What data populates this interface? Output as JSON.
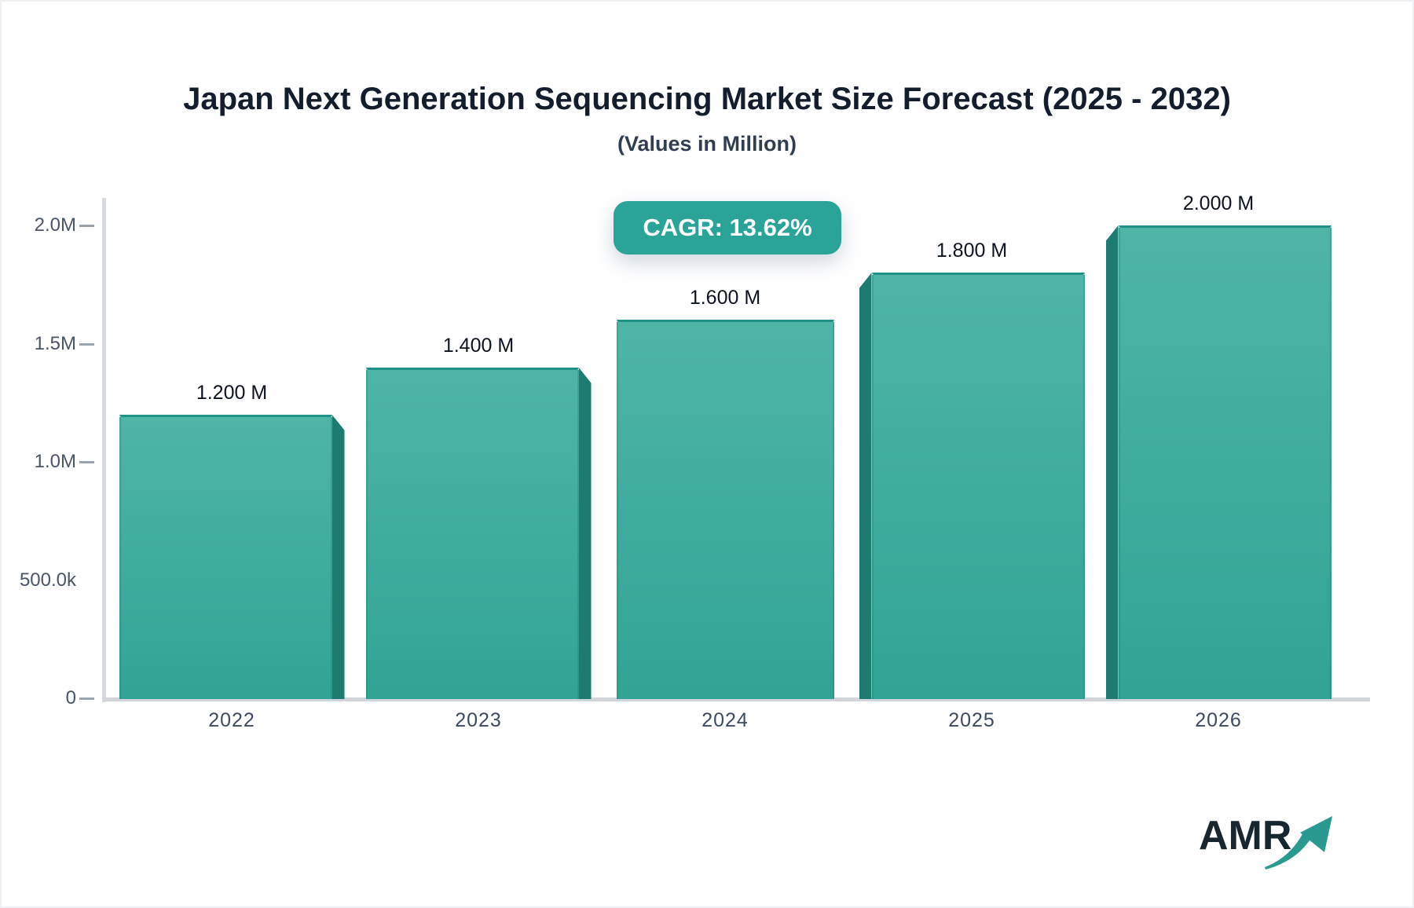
{
  "header": {
    "title": "Japan Next Generation Sequencing Market Size Forecast (2025 - 2032)",
    "subtitle": "(Values in Million)"
  },
  "cagr_badge": {
    "label": "CAGR: 13.62%",
    "bg_color": "#2aa399",
    "text_color": "#ffffff"
  },
  "chart_data": {
    "type": "bar",
    "title": "Japan Next Generation Sequencing Market Size Forecast (2025 - 2032)",
    "subtitle": "(Values in Million)",
    "categories": [
      "2022",
      "2023",
      "2024",
      "2025",
      "2026"
    ],
    "values": [
      1200000,
      1400000,
      1600000,
      1800000,
      2000000
    ],
    "value_labels": [
      "1.200 M",
      "1.400 M",
      "1.600 M",
      "1.800 M",
      "2.000 M"
    ],
    "xlabel": "",
    "ylabel": "",
    "ylim": [
      0,
      2000000
    ],
    "grid": false,
    "legend": false,
    "yticks": [
      {
        "value": 0,
        "label": "0",
        "dash": true
      },
      {
        "value": 500000,
        "label": "500.0k",
        "dash": false
      },
      {
        "value": 1000000,
        "label": "1.0M",
        "dash": true
      },
      {
        "value": 1500000,
        "label": "1.5M",
        "dash": true
      },
      {
        "value": 2000000,
        "label": "2.0M",
        "dash": true
      }
    ],
    "colors": {
      "bar_face_top": "#4fb5a6",
      "bar_face_bottom": "#31a496",
      "bar_side": "#1d7b70",
      "bar_top_edge": "#1f9186",
      "axis_line": "#d7dade",
      "baseline": "#d2d6db",
      "tick": "#9aa2ac",
      "value_label": "#0d1320",
      "y_label": "#4a5568",
      "x_label": "#3d4a5f"
    }
  },
  "logo": {
    "text": "AMR",
    "text_color": "#17262f",
    "arrow_color": "#2a9a90"
  }
}
